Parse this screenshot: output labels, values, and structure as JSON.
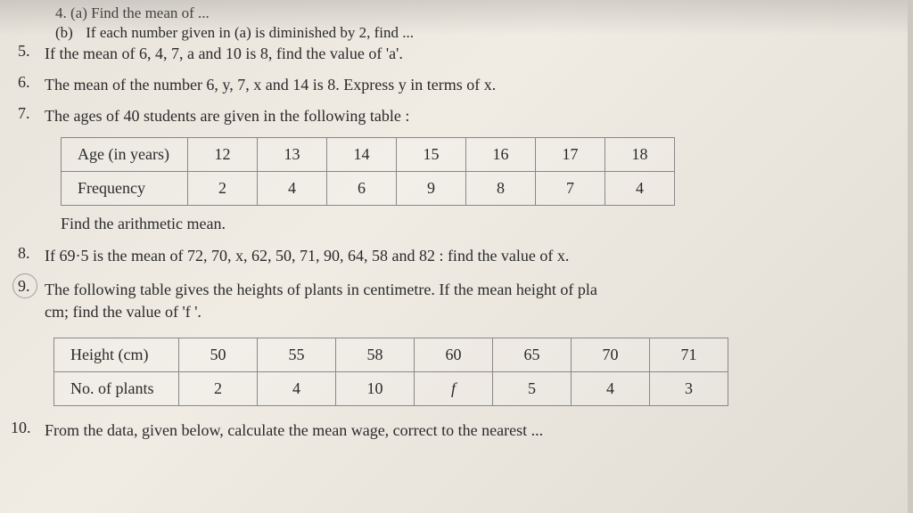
{
  "q4a": "4. (a) Find the mean of ...",
  "q4b_label": "(b)",
  "q4b": "If each number given in (a) is diminished by 2, find ...",
  "q5_num": "5.",
  "q5": "If the mean of 6, 4, 7, a and 10 is 8, find the value of 'a'.",
  "q6_num": "6.",
  "q6": "The mean of the number 6, y, 7, x and 14 is 8. Express y in terms of x.",
  "q7_num": "7.",
  "q7": "The ages of 40 students are given in the following table :",
  "table1": {
    "header_label": "Age (in years)",
    "row2_label": "Frequency",
    "ages": [
      "12",
      "13",
      "14",
      "15",
      "16",
      "17",
      "18"
    ],
    "freq": [
      "2",
      "4",
      "6",
      "9",
      "8",
      "7",
      "4"
    ]
  },
  "q7_after": "Find the arithmetic mean.",
  "q8_num": "8.",
  "q8": "If 69·5 is the mean of 72, 70, x, 62, 50, 71, 90, 64, 58 and 82 : find the value of x.",
  "q9_num": "9.",
  "q9_line1": "The following table gives the heights of plants in centimetre. If the mean height of pla",
  "q9_line2": "cm; find the value of 'f '.",
  "table2": {
    "header_label": "Height (cm)",
    "row2_label": "No. of plants",
    "heights": [
      "50",
      "55",
      "58",
      "60",
      "65",
      "70",
      "71"
    ],
    "counts": [
      "2",
      "4",
      "10",
      "f",
      "5",
      "4",
      "3"
    ]
  },
  "q10_num": "10.",
  "q10": "From the data, given below, calculate the mean wage, correct to the nearest ..."
}
